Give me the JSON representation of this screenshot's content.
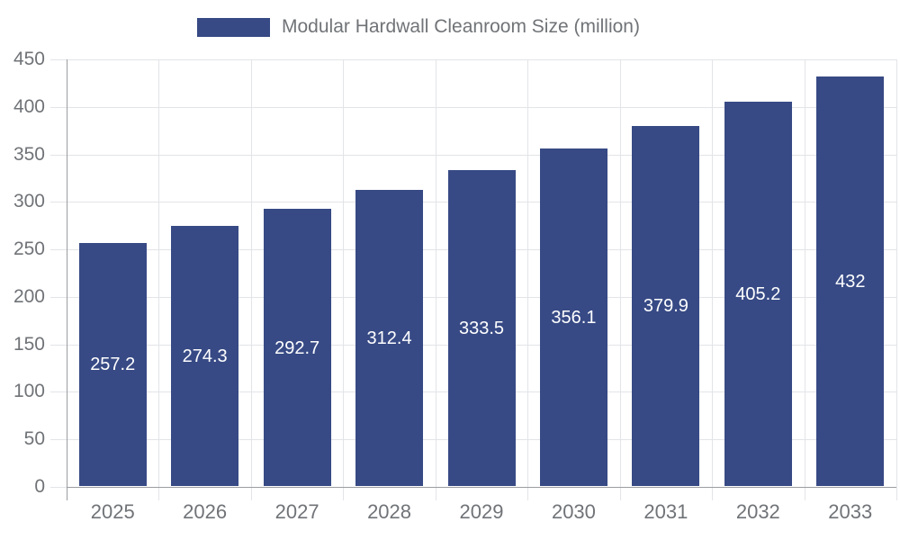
{
  "legend": {
    "label": "Modular Hardwall Cleanroom Size (million)"
  },
  "colors": {
    "bar": "#374A85",
    "grid": "#E3E4E8",
    "axis": "#9B9DA0",
    "tick_label": "#707377",
    "legend_text": "#707377",
    "value_label": "#FFFFFF",
    "background": "#FFFFFF"
  },
  "chart_data": {
    "type": "bar",
    "title": "Modular Hardwall Cleanroom Size (million)",
    "categories": [
      "2025",
      "2026",
      "2027",
      "2028",
      "2029",
      "2030",
      "2031",
      "2032",
      "2033"
    ],
    "values": [
      257.2,
      274.3,
      292.7,
      312.4,
      333.5,
      356.1,
      379.9,
      405.2,
      432
    ],
    "series": [
      {
        "name": "Modular Hardwall Cleanroom Size (million)",
        "values": [
          257.2,
          274.3,
          292.7,
          312.4,
          333.5,
          356.1,
          379.9,
          405.2,
          432
        ]
      }
    ],
    "xlabel": "",
    "ylabel": "",
    "ylim": [
      0,
      450
    ],
    "yticks": [
      0,
      50,
      100,
      150,
      200,
      250,
      300,
      350,
      400,
      450
    ],
    "grid": true,
    "legend_position": "top-center",
    "value_label_position": "inside-center"
  }
}
